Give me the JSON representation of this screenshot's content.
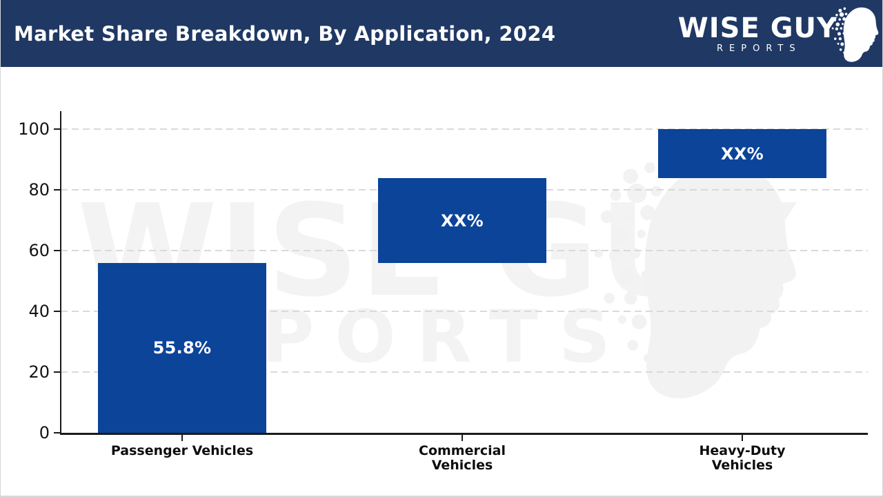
{
  "header": {
    "title": "Market Share Breakdown, By Application, 2024"
  },
  "brand": {
    "name": "WISE GUY",
    "subtext": "REPORTS"
  },
  "chart_data": {
    "type": "bar",
    "subtype": "waterfall",
    "title": "Market Share Breakdown, By Application, 2024",
    "categories": [
      "Passenger Vehicles",
      "Commercial Vehicles",
      "Heavy-Duty Vehicles"
    ],
    "category_lines": [
      [
        "Passenger Vehicles"
      ],
      [
        "Commercial",
        "Vehicles"
      ],
      [
        "Heavy-Duty",
        "Vehicles"
      ]
    ],
    "segments": [
      {
        "category": "Passenger Vehicles",
        "start": 0,
        "end": 55.8,
        "label": "55.8%"
      },
      {
        "category": "Commercial Vehicles",
        "start": 55.8,
        "end": 83.8,
        "label": "XX%"
      },
      {
        "category": "Heavy-Duty Vehicles",
        "start": 83.8,
        "end": 100,
        "label": "XX%"
      }
    ],
    "xlabel": "",
    "ylabel": "",
    "ylim": [
      0,
      105
    ],
    "yticks": [
      0,
      20,
      40,
      60,
      80,
      100
    ],
    "grid": "horizontal dashed",
    "legend": "none",
    "bar_color": "#0b4499",
    "bar_label_color": "#ffffff",
    "axis_color": "#1a1a1a",
    "gridline_color": "#d9d9d9",
    "header_bg": "#1f3864",
    "watermark_color": "#f2f2f2"
  }
}
